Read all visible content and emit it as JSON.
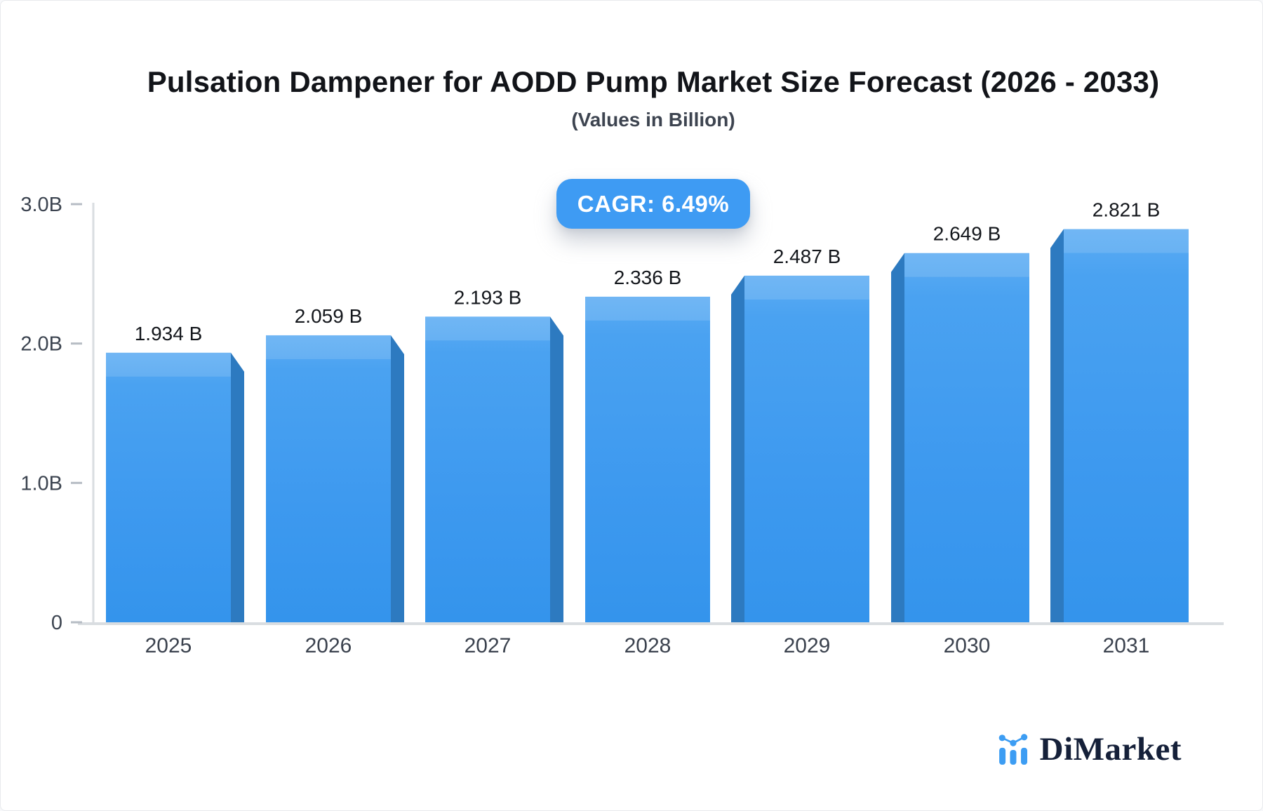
{
  "header": {
    "title": "Pulsation Dampener for AODD Pump Market Size Forecast (2026 - 2033)",
    "subtitle": "(Values in Billion)"
  },
  "badge": {
    "label": "CAGR: 6.49%"
  },
  "footer": {
    "brand": "DiMarket"
  },
  "colors": {
    "bar_front_top": "#5cacf3",
    "bar_front_bottom": "#3494ec",
    "bar_side": "#2d7ac0",
    "badge_bg": "#3e9bf3",
    "axis_line": "#d9dde1",
    "tick_dash": "#b6bcc4",
    "tick_label": "#3c4450",
    "year_label": "#3b424e",
    "value_label": "#14171c",
    "brand_navy": "#152039",
    "brand_blue": "#3d9df3"
  },
  "chart_data": {
    "type": "bar",
    "title": "Pulsation Dampener for AODD Pump Market Size Forecast (2026 - 2033)",
    "subtitle": "(Values in Billion)",
    "cagr": "6.49%",
    "unit": "Billion",
    "categories": [
      "2025",
      "2026",
      "2027",
      "2028",
      "2029",
      "2030",
      "2031"
    ],
    "values": [
      1.934,
      2.059,
      2.193,
      2.336,
      2.487,
      2.649,
      2.821
    ],
    "value_labels": [
      "1.934 B",
      "2.059 B",
      "2.193 B",
      "2.336 B",
      "2.487 B",
      "2.649 B",
      "2.821 B"
    ],
    "y_ticks": [
      {
        "value": 0,
        "label": "0"
      },
      {
        "value": 1,
        "label": "1.0B"
      },
      {
        "value": 2,
        "label": "2.0B"
      },
      {
        "value": 3,
        "label": "3.0B"
      }
    ],
    "ylim": [
      0,
      3
    ],
    "xlabel": "",
    "ylabel": "",
    "grid": false,
    "legend": "none",
    "bar_style": "3d-perspective"
  }
}
